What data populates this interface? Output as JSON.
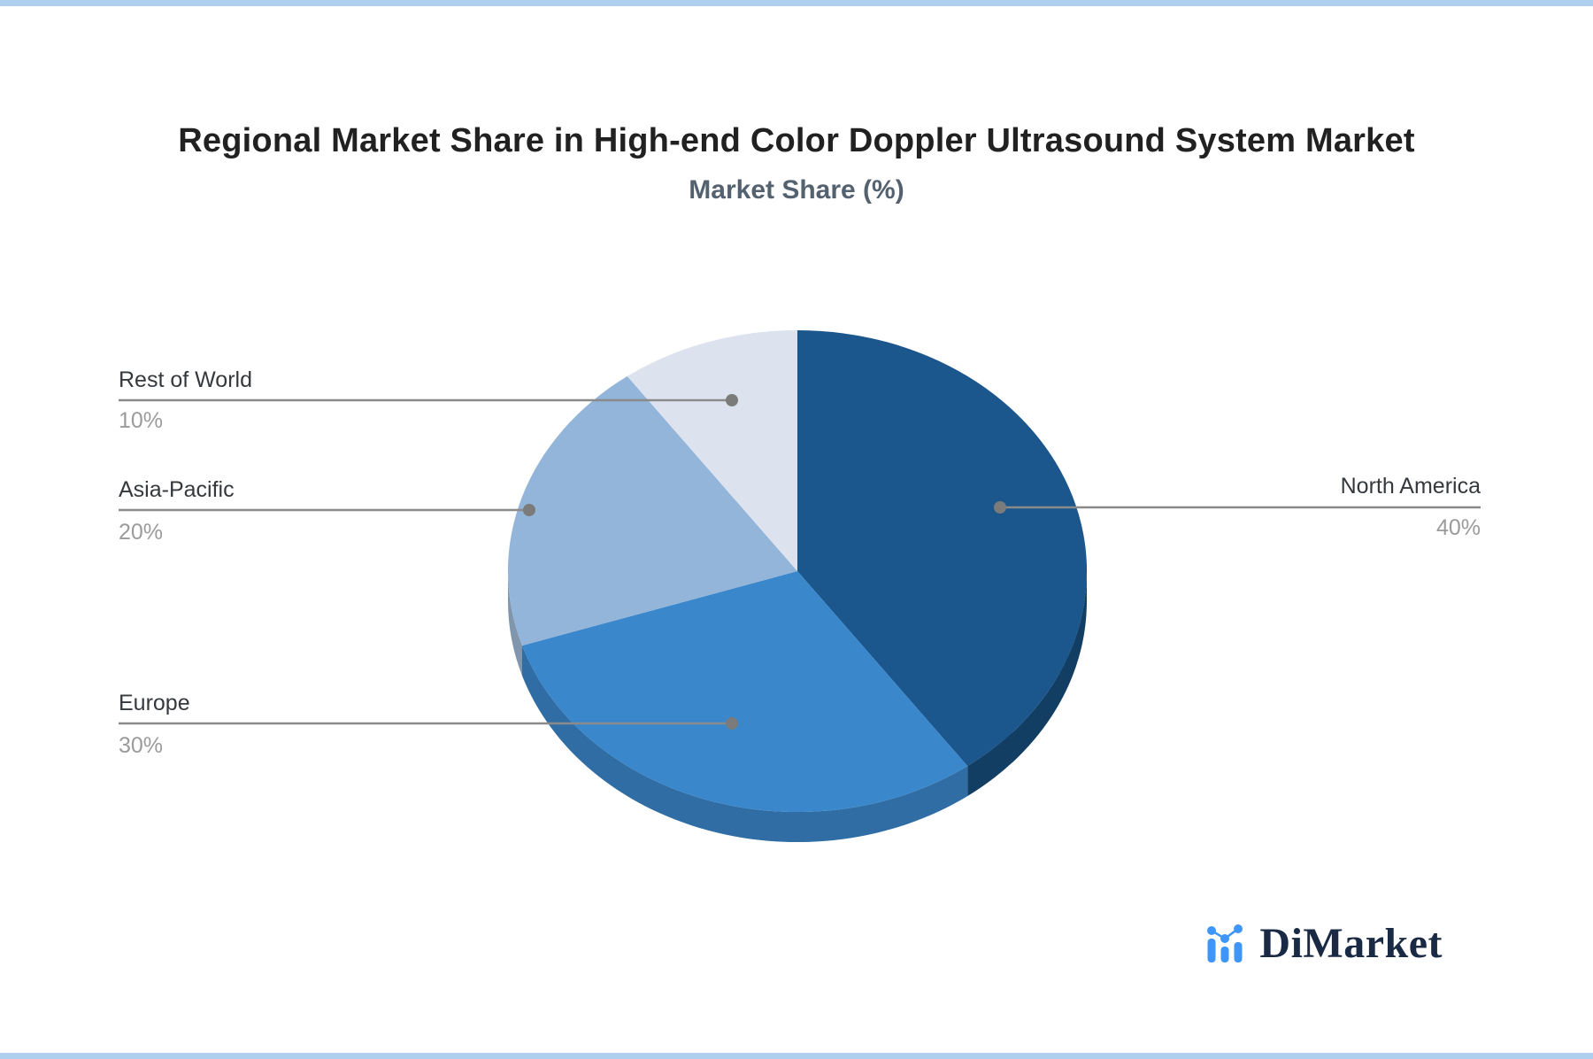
{
  "page": {
    "title": "Regional Market Share in High-end Color Doppler Ultrasound System Market",
    "subtitle": "Market Share (%)"
  },
  "chart_data": {
    "type": "pie",
    "title": "Regional Market Share in High-end Color Doppler Ultrasound System Market",
    "subtitle": "Market Share (%)",
    "unit": "%",
    "style": "3d-pie",
    "start_angle_deg": 0,
    "direction": "clockwise",
    "legend_position": "none (leader-line labels)",
    "slices": [
      {
        "label": "North America",
        "value": 40,
        "pct_label": "40%",
        "color": "#1b568d",
        "side_color": "#123e63"
      },
      {
        "label": "Europe",
        "value": 30,
        "pct_label": "30%",
        "color": "#3a87cb",
        "side_color": "#2f6da4"
      },
      {
        "label": "Asia-Pacific",
        "value": 20,
        "pct_label": "20%",
        "color": "#93b5d9",
        "side_color": "#8096ad"
      },
      {
        "label": "Rest of World",
        "value": 10,
        "pct_label": "10%",
        "color": "#dce3ef",
        "side_color": "#b8c3d3"
      }
    ],
    "leader_line_color": "#8a8a8a",
    "leader_dot_color": "#7b7b7b"
  },
  "branding": {
    "logo_text": "DiMarket",
    "logo_text_color": "#1b2a44",
    "logo_icon_color": "#3e97f8"
  },
  "frame": {
    "strip_color": "#aecfed"
  }
}
